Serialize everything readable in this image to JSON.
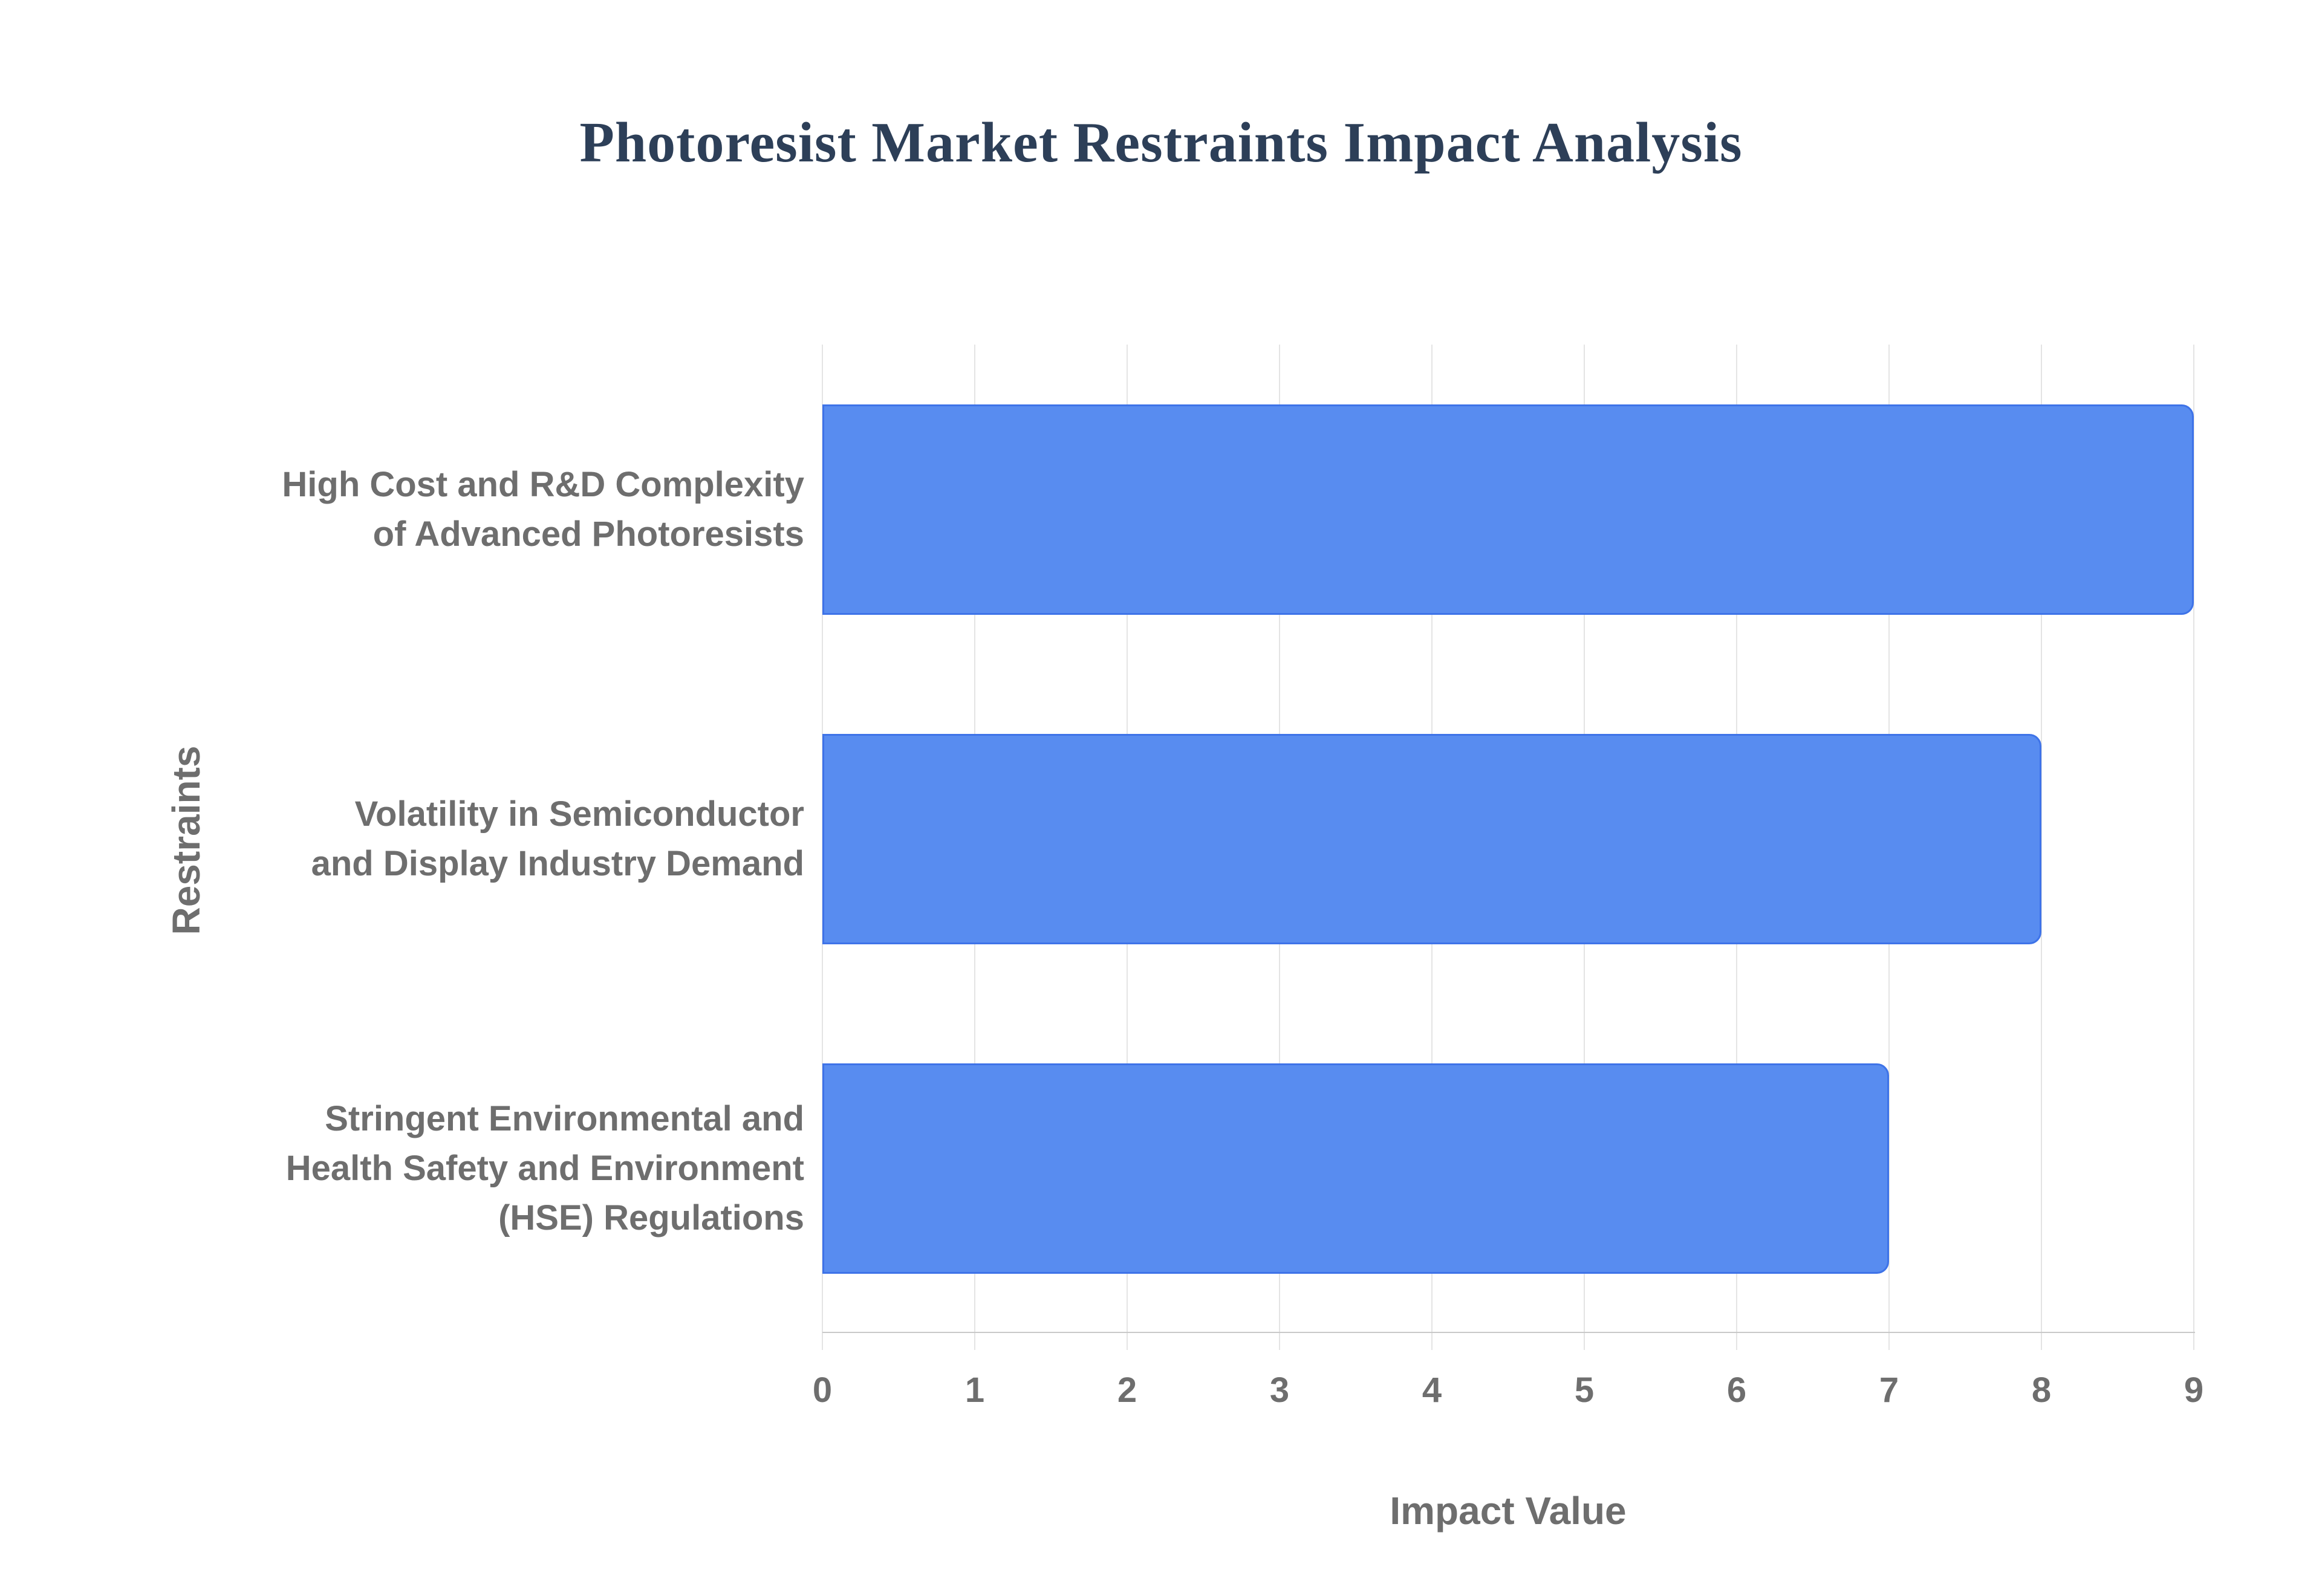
{
  "chart_data": {
    "type": "bar",
    "orientation": "horizontal",
    "title": "Photoresist Market Restraints Impact Analysis",
    "categories": [
      "High Cost and R&D Complexity of Advanced Photoresists",
      "Volatility in Semiconductor and Display Industry Demand",
      "Stringent Environmental and Health Safety and Environment (HSE) Regulations"
    ],
    "categories_wrapped": [
      [
        "High Cost and R&D Complexity",
        "of Advanced Photoresists"
      ],
      [
        "Volatility in Semiconductor",
        "and Display Industry Demand"
      ],
      [
        "Stringent Environmental and",
        "Health Safety and Environment",
        "(HSE) Regulations"
      ]
    ],
    "values": [
      9,
      8,
      7
    ],
    "xlabel": "Impact Value",
    "ylabel": "Restraints",
    "xlim": [
      0,
      9
    ],
    "xticks": [
      0,
      1,
      2,
      3,
      4,
      5,
      6,
      7,
      8,
      9
    ],
    "grid": "vertical",
    "legend": "none",
    "colors": {
      "bar_fill": "#588cf0",
      "bar_border": "#3e73e8",
      "gridline": "#e4e4e4",
      "axis_line": "#c9c9c9",
      "title_text": "#2d3f58",
      "label_text": "#6e6e6e",
      "background": "#ffffff"
    }
  }
}
